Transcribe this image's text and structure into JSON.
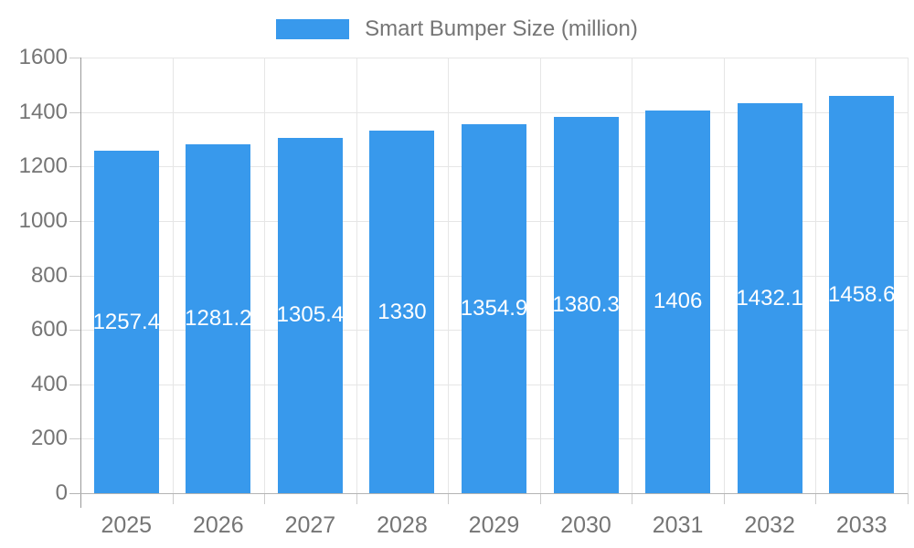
{
  "legend": {
    "label": "Smart Bumper Size (million)"
  },
  "colors": {
    "bar": "#3899EC",
    "grid": "#e6e6e6",
    "axis_line": "#999999",
    "tick": "#cccccc",
    "baseline": "#b3b3b3",
    "text": "#757575",
    "bar_label": "#ffffff"
  },
  "chart_data": {
    "type": "bar",
    "title": "Smart Bumper Size (million)",
    "categories": [
      "2025",
      "2026",
      "2027",
      "2028",
      "2029",
      "2030",
      "2031",
      "2032",
      "2033"
    ],
    "series": [
      {
        "name": "Smart Bumper Size (million)",
        "values": [
          1257.4,
          1281.2,
          1305.4,
          1330,
          1354.9,
          1380.3,
          1406,
          1432.1,
          1458.6
        ]
      }
    ],
    "value_labels": [
      "1257.4",
      "1281.2",
      "1305.4",
      "1330",
      "1354.9",
      "1380.3",
      "1406",
      "1432.1",
      "1458.6"
    ],
    "ylabel": "",
    "xlabel": "",
    "ylim": [
      0,
      1600
    ],
    "ytick_interval": 200,
    "ytick_labels": [
      "0",
      "200",
      "400",
      "600",
      "800",
      "1000",
      "1200",
      "1400",
      "1600"
    ],
    "grid": true,
    "legend_position": "top",
    "bar_label_position": "middle"
  }
}
